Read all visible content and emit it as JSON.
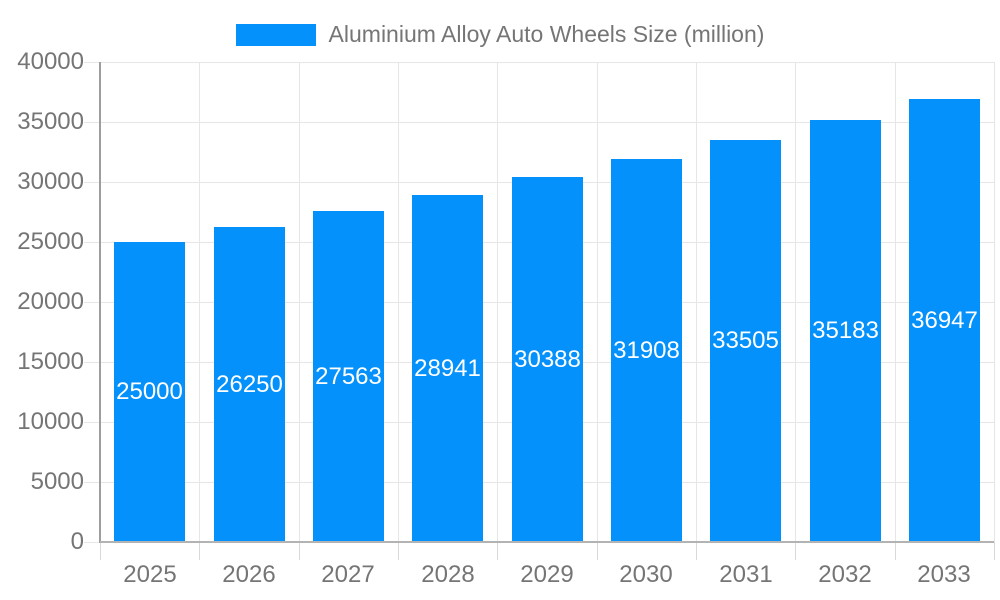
{
  "legend": {
    "items": [
      {
        "label": "Aluminium Alloy Auto Wheels Size (million)",
        "color": "#0591fb"
      }
    ]
  },
  "colors": {
    "bar": "#0591fb",
    "bar_label": "#ffffff",
    "axis_text": "#757575",
    "grid": "#e6e6e6",
    "tick": "#d9d9d9",
    "axis_line_vertical": "#9e9e9e",
    "axis_line_horizontal": "#b3b3b3",
    "background": "#ffffff"
  },
  "chart_data": {
    "type": "bar",
    "title": "",
    "xlabel": "",
    "ylabel": "",
    "categories": [
      "2025",
      "2026",
      "2027",
      "2028",
      "2029",
      "2030",
      "2031",
      "2032",
      "2033"
    ],
    "series": [
      {
        "name": "Aluminium Alloy Auto Wheels Size (million)",
        "values": [
          25000,
          26250,
          27563,
          28941,
          30388,
          31908,
          33505,
          35183,
          36947
        ]
      }
    ],
    "bar_labels": true,
    "ylim": [
      0,
      40000
    ],
    "ytick_interval": 5000,
    "yticks": [
      0,
      5000,
      10000,
      15000,
      20000,
      25000,
      30000,
      35000,
      40000
    ],
    "grid": true,
    "legend_position": "top"
  }
}
